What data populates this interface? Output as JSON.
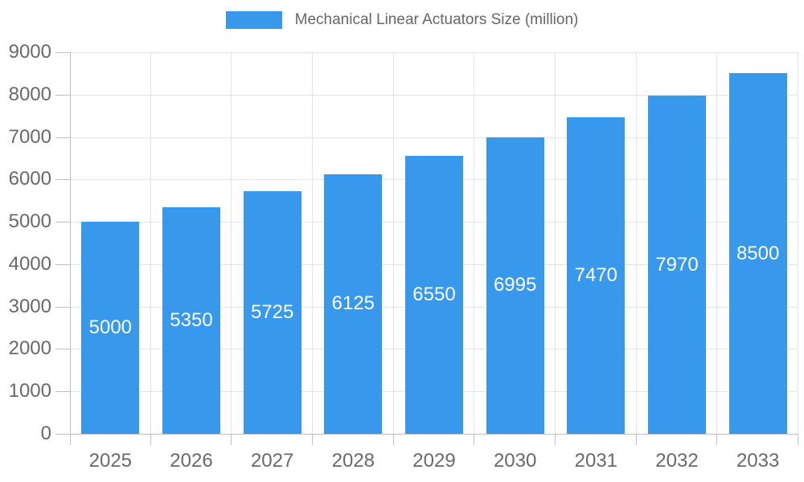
{
  "legend": {
    "label": "Mechanical Linear Actuators Size (million)"
  },
  "chart_data": {
    "type": "bar",
    "title": "Mechanical Linear Actuators Size (million)",
    "categories": [
      "2025",
      "2026",
      "2027",
      "2028",
      "2029",
      "2030",
      "2031",
      "2032",
      "2033"
    ],
    "values": [
      5000,
      5350,
      5725,
      6125,
      6550,
      6995,
      7470,
      7970,
      8500
    ],
    "xlabel": "",
    "ylabel": "",
    "ylim": [
      0,
      9000
    ],
    "ytick_step": 1000,
    "ytick_labels": [
      "0",
      "1000",
      "2000",
      "3000",
      "4000",
      "5000",
      "6000",
      "7000",
      "8000",
      "9000"
    ],
    "grid": true,
    "legend_position": "top-center",
    "bar_color": "#3899EC",
    "bar_label_color": "#FFFFFF",
    "axis_text_color": "#696969",
    "grid_color": "#E4E4E4",
    "axis_line_color": "#BFBFBF",
    "background_color": "#FFFFFF"
  }
}
